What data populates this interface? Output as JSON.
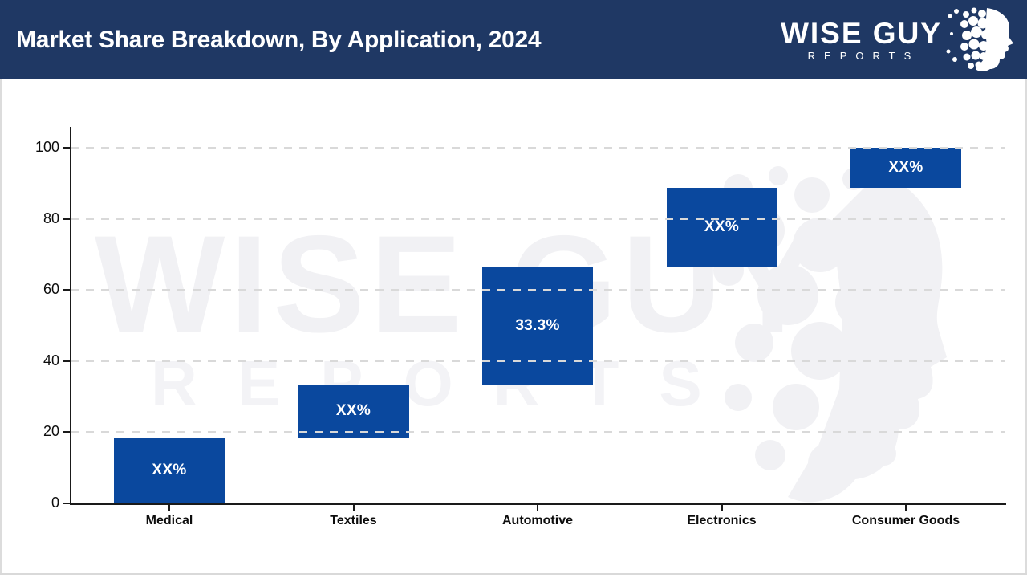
{
  "header": {
    "title": "Market Share Breakdown, By Application, 2024",
    "logo": {
      "line1": "WISE GUY",
      "line2": "REPORTS"
    }
  },
  "watermark": {
    "line1": "WISE GUY",
    "line2": "REPORTS"
  },
  "chart_data": {
    "type": "bar",
    "variant": "waterfall",
    "title": "Market Share Breakdown, By Application, 2024",
    "categories": [
      "Medical",
      "Textiles",
      "Automotive",
      "Electronics",
      "Consumer Goods"
    ],
    "segments": [
      {
        "category": "Medical",
        "start": 0,
        "end": 18.5,
        "increment": 18.5,
        "label": "XX%"
      },
      {
        "category": "Textiles",
        "start": 18.5,
        "end": 33.3,
        "increment": 14.8,
        "label": "XX%"
      },
      {
        "category": "Automotive",
        "start": 33.3,
        "end": 66.6,
        "increment": 33.3,
        "label": "33.3%"
      },
      {
        "category": "Electronics",
        "start": 66.6,
        "end": 88.8,
        "increment": 22.2,
        "label": "XX%"
      },
      {
        "category": "Consumer Goods",
        "start": 88.8,
        "end": 100,
        "increment": 11.2,
        "label": "XX%"
      }
    ],
    "yticks": [
      0,
      20,
      40,
      60,
      80,
      100
    ],
    "ylim": [
      0,
      105
    ],
    "xlabel": "",
    "ylabel": "",
    "grid": "horizontal-dashed",
    "legend": null,
    "bar_color": "#0a489e",
    "bar_label_color": "#ffffff"
  },
  "colors": {
    "header_bg": "#1f3864",
    "bar": "#0a489e",
    "gridline": "#d9d9d9",
    "axis": "#1a1a1a",
    "watermark": "#f1f1f4"
  }
}
